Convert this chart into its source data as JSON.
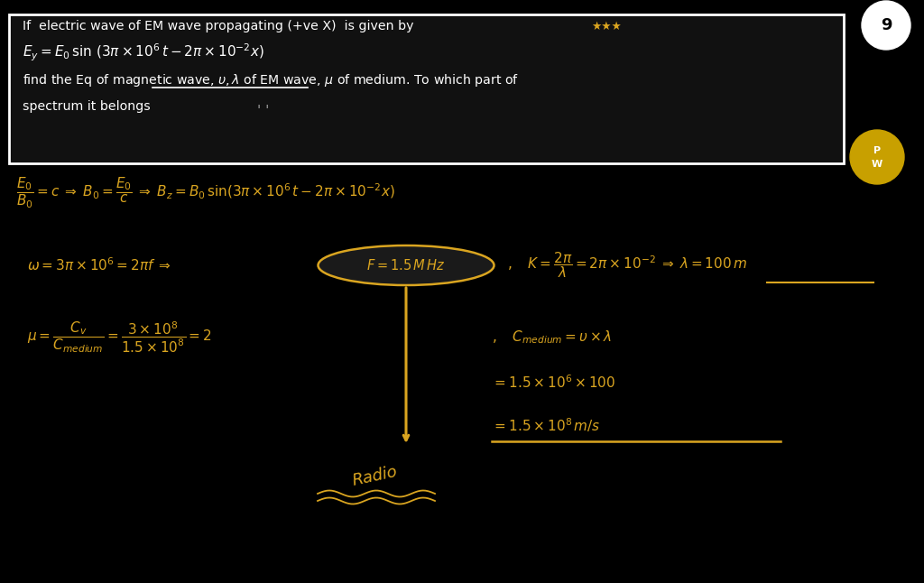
{
  "background_color": "#000000",
  "page_number": "9",
  "gold": "#DAA520",
  "white": "#ffffff",
  "dark_box_bg": "#111111",
  "question_line1": "If  electric wave of EM wave propagating (+ve X)  is given by",
  "question_line2": "$E_y = E_0\\,\\sin\\,(3\\pi\\times10^6\\,t - 2\\pi\\times10^{-2}x)$",
  "question_line3": "find the Eq of magnetic wave, $\\upsilon,\\lambda$ of EM wave, $\\mu$ of medium. To which part of",
  "question_line4": "spectrum it belongs",
  "sol1": "$\\dfrac{E_0}{B_0} = c \\;\\Rightarrow\\; B_0 = \\dfrac{E_0}{c} \\;\\Rightarrow\\; B_z = B_0\\,\\sin\\!\\left(3\\pi\\times10^6\\,t - 2\\pi\\times10^{-2}x\\right)$",
  "sol2a": "$\\omega = 3\\pi\\times10^6 = 2\\pi f \\;\\Rightarrow$",
  "sol2b": "$F = 1.5\\,M\\,Hz$",
  "sol2c": "$,\\quad K = \\dfrac{2\\pi}{\\lambda} = 2\\pi\\times10^{-2} \\;\\Rightarrow\\; \\lambda = 100\\,m$",
  "sol3": "$\\mu = \\dfrac{C_v}{C_{medium}} = \\dfrac{3\\times10^8}{1.5\\times10^8} = 2$",
  "sol4a": "$,\\quad C_{medium} = \\upsilon\\times\\lambda$",
  "sol4b": "$= 1.5\\times10^6\\times100$",
  "sol4c": "$= 1.5\\times10^8\\,m/s$",
  "radio_text": "Radio"
}
